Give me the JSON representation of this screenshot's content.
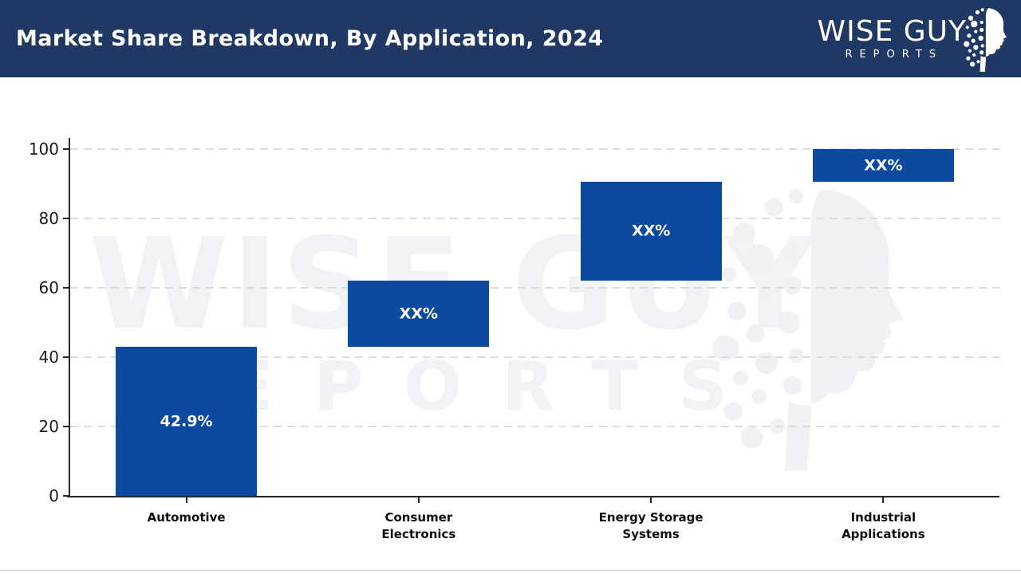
{
  "header": {
    "title": "Market Share Breakdown, By Application, 2024",
    "bg_color": "#1f3864",
    "logo": {
      "line1": "WISE GUY",
      "line2": "REPORTS"
    }
  },
  "watermark": {
    "line1": "WISE GUY",
    "line2": "REPORTS"
  },
  "chart_data": {
    "type": "bar",
    "subtype": "waterfall-step",
    "title": "Market Share Breakdown, By Application, 2024",
    "categories": [
      "Automotive",
      "Consumer Electronics",
      "Energy Storage Systems",
      "Industrial Applications"
    ],
    "segments": [
      {
        "category_lines": [
          "Automotive"
        ],
        "start": 0,
        "end": 42.9,
        "label": "42.9%"
      },
      {
        "category_lines": [
          "Consumer",
          "Electronics"
        ],
        "start": 42.9,
        "end": 62,
        "label": "XX%"
      },
      {
        "category_lines": [
          "Energy Storage",
          "Systems"
        ],
        "start": 62,
        "end": 90.5,
        "label": "XX%"
      },
      {
        "category_lines": [
          "Industrial",
          "Applications"
        ],
        "start": 90.5,
        "end": 100,
        "label": "XX%"
      }
    ],
    "y_ticks": [
      0,
      20,
      40,
      60,
      80,
      100
    ],
    "ylim": [
      0,
      100
    ],
    "xlabel": "",
    "ylabel": "",
    "grid": "horizontal-dashed",
    "grid_color": "#dcdcdc",
    "axis_color": "#262626",
    "bar_color": "#0b4a9f",
    "bar_label_color": "#ffffff",
    "legend": "none"
  }
}
